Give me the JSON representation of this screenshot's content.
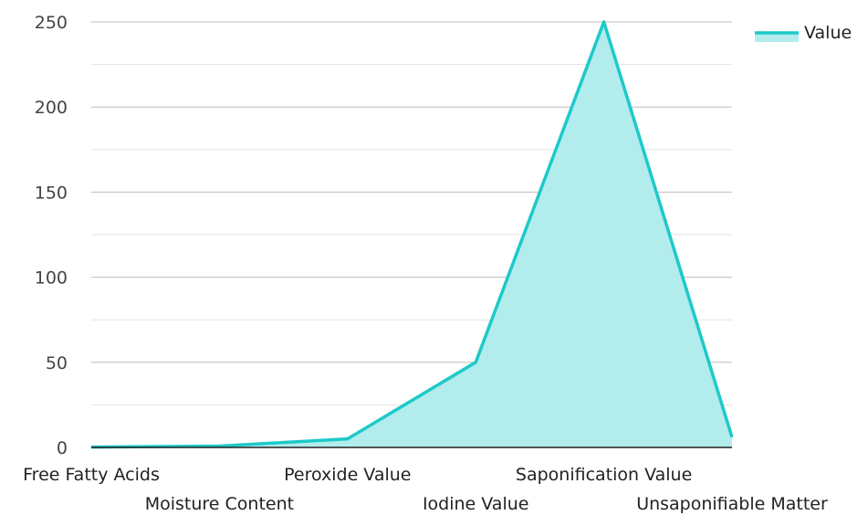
{
  "chart_data": {
    "type": "area",
    "categories": [
      "Free Fatty Acids",
      "Moisture Content",
      "Peroxide Value",
      "Iodine Value",
      "Saponification Value",
      "Unsaponifiable Matter"
    ],
    "series": [
      {
        "name": "Value",
        "values": [
          0.2,
          0.8,
          5,
          50,
          250,
          6
        ]
      }
    ],
    "ylim": [
      0,
      250
    ],
    "yticks": [
      0,
      50,
      100,
      150,
      200,
      250
    ],
    "grid": true,
    "legend": "top-right",
    "colors": {
      "line": "#1ec9c9",
      "fill": "#b2ecec",
      "grid_major": "#bdbdbd",
      "grid_minor": "#e3e3e3",
      "axis": "#222222"
    }
  }
}
